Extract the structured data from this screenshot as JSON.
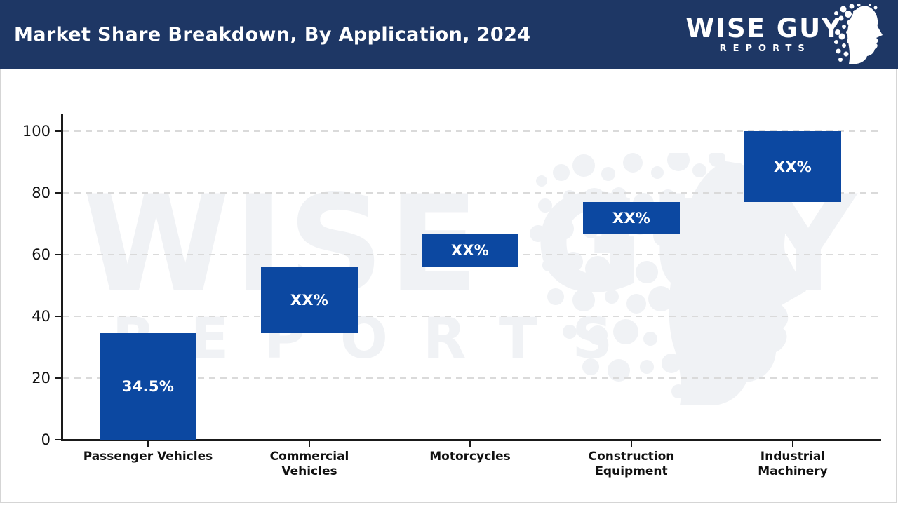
{
  "header": {
    "title": "Market Share Breakdown, By Application, 2024",
    "logo": {
      "line1": "WISE GUY",
      "line2": "REPORTS"
    }
  },
  "watermark": {
    "line1": "WISE GUY",
    "line2": "REPORTS"
  },
  "chart_data": {
    "type": "bar",
    "subtype": "waterfall",
    "title": "Market Share Breakdown, By Application, 2024",
    "categories": [
      "Passenger Vehicles",
      "Commercial Vehicles",
      "Motorcycles",
      "Construction Equipment",
      "Industrial Machinery"
    ],
    "tick_labels": [
      "Passenger Vehicles",
      "Commercial\nVehicles",
      "Motorcycles",
      "Construction\nEquipment",
      "Industrial\nMachinery"
    ],
    "bars": [
      {
        "category": "Passenger Vehicles",
        "start": 0,
        "end": 34.5,
        "label": "34.5%"
      },
      {
        "category": "Commercial Vehicles",
        "start": 34.5,
        "end": 56,
        "label": "XX%"
      },
      {
        "category": "Motorcycles",
        "start": 56,
        "end": 66.5,
        "label": "XX%"
      },
      {
        "category": "Construction Equipment",
        "start": 66.5,
        "end": 77,
        "label": "XX%"
      },
      {
        "category": "Industrial Machinery",
        "start": 77,
        "end": 100,
        "label": "XX%"
      }
    ],
    "xlabel": "",
    "ylabel": "",
    "ylim": [
      0,
      100
    ],
    "yticks": [
      0,
      20,
      40,
      60,
      80,
      100
    ],
    "grid": "horizontal-dashed",
    "legend": "none",
    "bar_color": "#0c48a1",
    "label_color": "#ffffff",
    "header_color": "#1e3765",
    "gridline_color": "#dadada"
  }
}
